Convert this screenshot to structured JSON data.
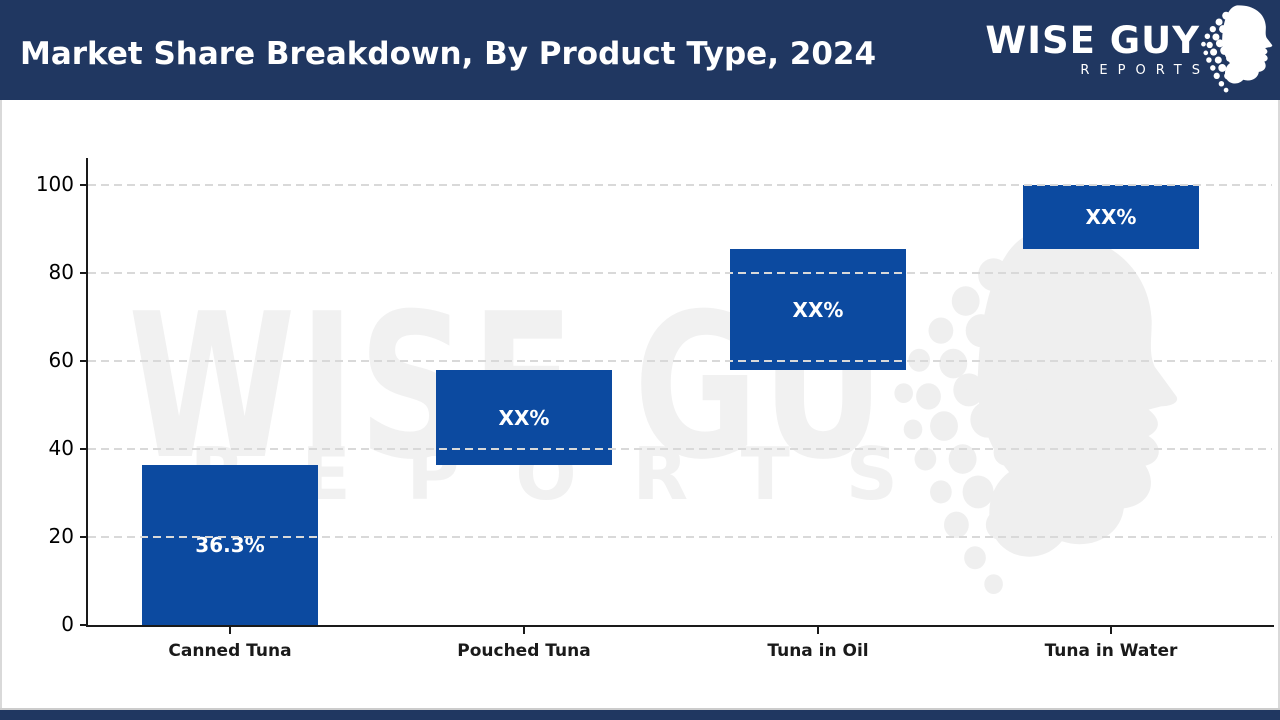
{
  "header": {
    "title": "Market Share Breakdown, By Product Type, 2024",
    "logo": {
      "line1": "WISE GUY",
      "line2": "REPORTS"
    }
  },
  "watermark": {
    "line1": "WISE GU",
    "line2": "REPORTS"
  },
  "colors": {
    "header_background": "#203761",
    "footer_background": "#203761",
    "bar_fill": "#0c4aa0",
    "bar_label_text": "#ffffff",
    "gridline": "#d9d9d9",
    "axis_text": "#000000",
    "watermark": "#f1f1f1"
  },
  "chart_data": {
    "type": "bar",
    "variant": "floating waterfall-style market share bars",
    "title": "Market Share Breakdown, By Product Type, 2024",
    "categories": [
      "Canned Tuna",
      "Pouched Tuna",
      "Tuna in Oil",
      "Tuna in Water"
    ],
    "bars": [
      {
        "category": "Canned Tuna",
        "start": 0,
        "end": 36.3,
        "label": "36.3%"
      },
      {
        "category": "Pouched Tuna",
        "start": 36.3,
        "end": 57.9,
        "label": "XX%"
      },
      {
        "category": "Tuna in Oil",
        "start": 57.9,
        "end": 85.4,
        "label": "XX%"
      },
      {
        "category": "Tuna in Water",
        "start": 85.4,
        "end": 100,
        "label": "XX%"
      }
    ],
    "xlabel": "",
    "ylabel": "",
    "yticks": [
      0,
      20,
      40,
      60,
      80,
      100
    ],
    "ytick_labels": [
      "0",
      "20",
      "40",
      "60",
      "80",
      "100"
    ],
    "ylim": [
      0,
      106
    ],
    "grid": "horizontal dashed, drawn over bars",
    "legend": "none",
    "bar_color": "#0c4aa0",
    "label_color": "#ffffff"
  }
}
